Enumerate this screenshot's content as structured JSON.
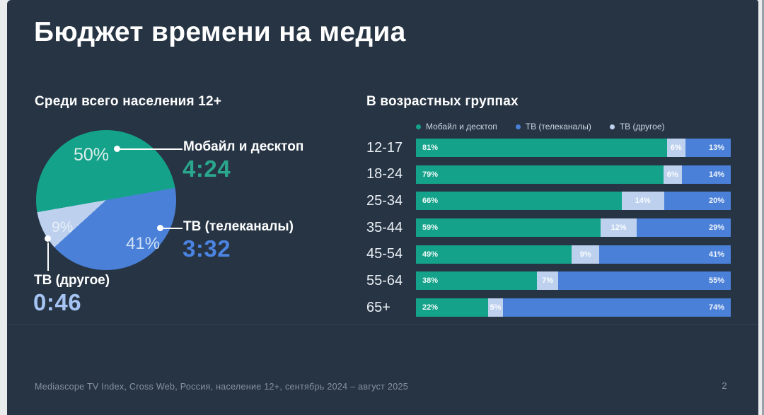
{
  "title": "Бюджет времени на медиа",
  "footer": "Mediascope TV Index, Cross Web, Россия, население 12+, сентябрь 2024 – август 2025",
  "page_number": "2",
  "colors": {
    "slide_background": "#263444",
    "mobile_desktop": "#14a38a",
    "tv_channels": "#4a80d8",
    "tv_other": "#bdd1ef",
    "mobile_time_text": "#2aa78d",
    "tv_time_text": "#4c84e2",
    "other_time_text": "#a6c4f3"
  },
  "chart_data": [
    {
      "type": "pie",
      "title": "Среди всего населения 12+",
      "slices": [
        {
          "label": "Мобайл и десктоп",
          "percent": 50,
          "percent_label": "50%",
          "time": "4:24",
          "color": "#14a38a",
          "time_color": "#2aa78d"
        },
        {
          "label": "ТВ (телеканалы)",
          "percent": 41,
          "percent_label": "41%",
          "time": "3:32",
          "color": "#4a80d8",
          "time_color": "#4c84e2"
        },
        {
          "label": "ТВ (другое)",
          "percent": 9,
          "percent_label": "9%",
          "time": "0:46",
          "color": "#bdd1ef",
          "time_color": "#a6c4f3"
        }
      ]
    },
    {
      "type": "bar",
      "stacked": true,
      "orientation": "horizontal",
      "title": "В возрастных группах",
      "unit": "%",
      "categories": [
        "12-17",
        "18-24",
        "25-34",
        "35-44",
        "45-54",
        "55-64",
        "65+"
      ],
      "series": [
        {
          "name": "Мобайл и десктоп",
          "color": "#14a38a",
          "values": [
            81,
            79,
            66,
            59,
            49,
            38,
            22
          ]
        },
        {
          "name": "ТВ (другое)",
          "color": "#bdd1ef",
          "values": [
            6,
            6,
            14,
            12,
            9,
            7,
            5
          ]
        },
        {
          "name": "ТВ (телеканалы)",
          "color": "#4a80d8",
          "values": [
            13,
            14,
            20,
            29,
            41,
            55,
            74
          ]
        }
      ],
      "legend_order": [
        "Мобайл и десктоп",
        "ТВ (телеканалы)",
        "ТВ (другое)"
      ]
    }
  ]
}
